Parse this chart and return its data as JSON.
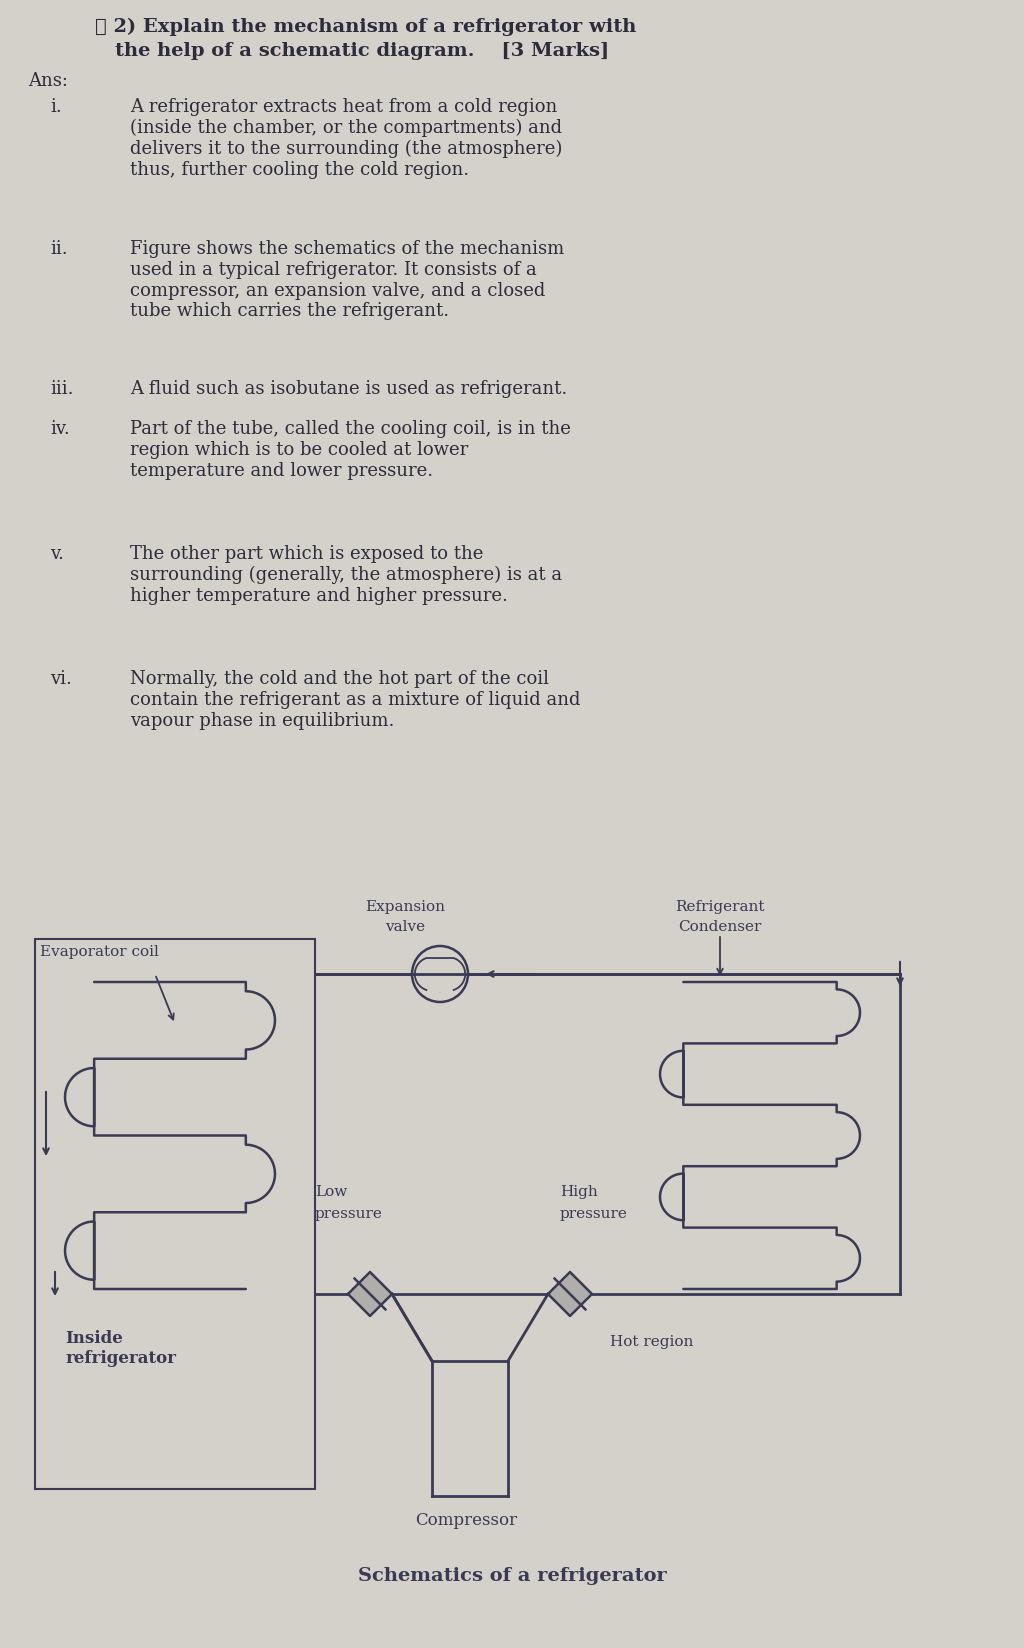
{
  "bg_color": "#d4d1ca",
  "title_line1": "  瑲 2) Explain the mechanism of a refrigerator with",
  "title_line2": "       the help of a schematic diagram.   [3 Marks]",
  "ans_label": "Ans:",
  "points": [
    [
      "i.",
      "A refrigerator extracts heat from a cold region\n(inside the chamber, or the compartments) and\ndelivers it to the surrounding (the atmosphere)\nthus, further cooling the cold region."
    ],
    [
      "ii.",
      "Figure shows the schematics of the mechanism\nused in a typical refrigerator. It consists of a\ncompressor, an expansion valve, and a closed\ntube which carries the refrigerant."
    ],
    [
      "iii.",
      "A fluid such as isobutane is used as refrigerant."
    ],
    [
      "iv.",
      "Part of the tube, called the cooling coil, is in the\nregion which is to be cooled at lower\ntemperature and lower pressure."
    ],
    [
      "v.",
      "The other part which is exposed to the\nsurrounding (generally, the atmosphere) is at a\nhigher temperature and higher pressure."
    ],
    [
      "vi.",
      "Normally, the cold and the hot part of the coil\ncontain the refrigerant as a mixture of liquid and\nvapour phase in equilibrium."
    ]
  ],
  "diagram_labels": {
    "expansion_valve": "Expansion",
    "expansion_valve2": "valve",
    "refrigerant": "Refrigerant",
    "condenser": "Condenser",
    "evaporator_coil": "Evaporator coil",
    "low_pressure": "Low",
    "low_pressure2": "pressure",
    "high_pressure": "High",
    "high_pressure2": "pressure",
    "inside_refrigerator": "Inside\nrefrigerator",
    "hot_region": "Hot region",
    "compressor": "Compressor",
    "title_diagram": "Schematics of a refrigerator"
  },
  "text_color": "#2c2c3c",
  "diagram_color": "#3a3a55",
  "font_size_title": 14,
  "font_size_body": 13,
  "font_size_diagram": 11
}
